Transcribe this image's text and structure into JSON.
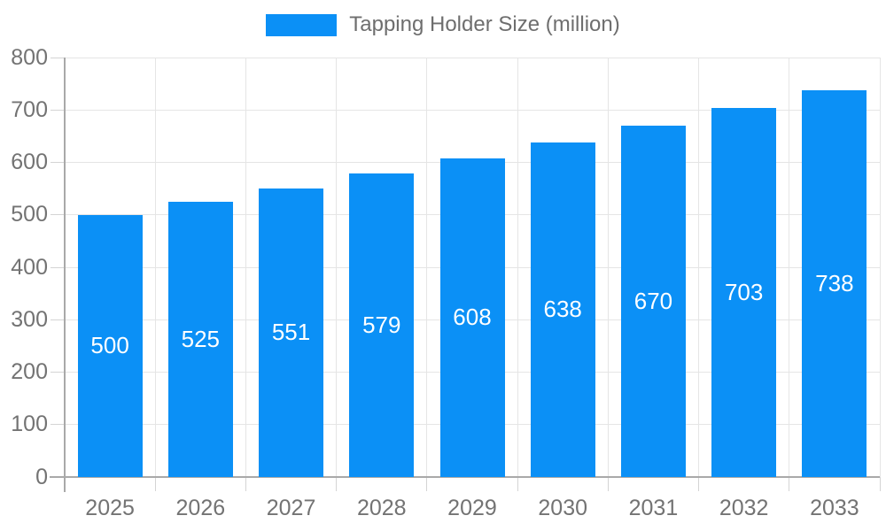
{
  "legend": {
    "label": "Tapping Holder Size (million)"
  },
  "chart_data": {
    "type": "bar",
    "title": "Tapping Holder Size (million)",
    "categories": [
      "2025",
      "2026",
      "2027",
      "2028",
      "2029",
      "2030",
      "2031",
      "2032",
      "2033"
    ],
    "series": [
      {
        "name": "Tapping Holder Size (million)",
        "values": [
          500,
          525,
          551,
          579,
          608,
          638,
          670,
          703,
          738
        ]
      }
    ],
    "xlabel": "",
    "ylabel": "",
    "ylim": [
      0,
      800
    ],
    "yticks": [
      0,
      100,
      200,
      300,
      400,
      500,
      600,
      700,
      800
    ],
    "grid": true,
    "legend_position": "top",
    "data_labels_position": "inside-middle",
    "colors": {
      "bar": "#0b90f6",
      "grid": "#e5e5e5",
      "axis": "#a9a9a9",
      "tick": "#d4d4d4",
      "tick_label": "#737373",
      "data_label": "#ffffff",
      "legend_text": "#6e6e6e",
      "background": "#ffffff"
    }
  }
}
